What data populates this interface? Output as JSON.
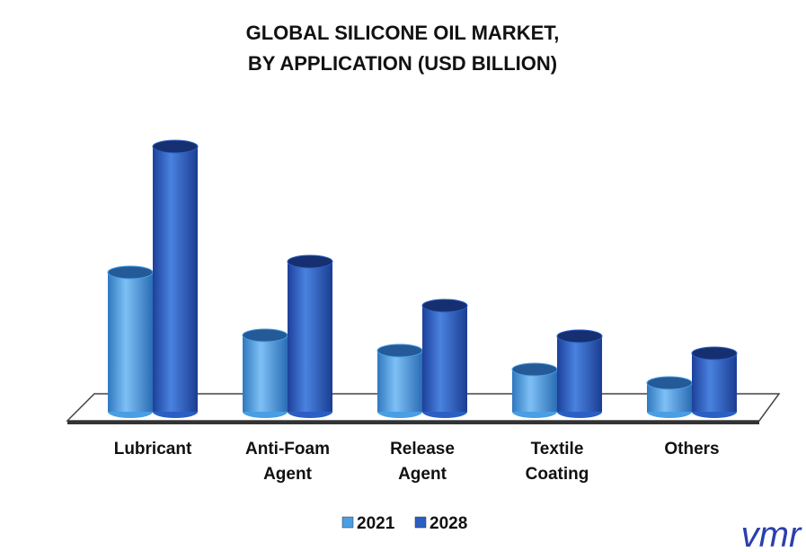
{
  "chart_data": {
    "type": "bar3d",
    "title": "GLOBAL SILICONE OIL MARKET,",
    "subtitle": "BY APPLICATION (USD BILLION)",
    "categories": [
      "Lubricant",
      "Anti-Foam Agent",
      "Release Agent",
      "Textile Coating",
      "Others"
    ],
    "series": [
      {
        "name": "2021",
        "color": "#4a9ee3",
        "values": [
          1.55,
          0.85,
          0.68,
          0.47,
          0.32
        ]
      },
      {
        "name": "2028",
        "color": "#2b5fc4",
        "values": [
          2.95,
          1.67,
          1.18,
          0.84,
          0.65
        ]
      }
    ],
    "legend": "bottom",
    "logo": "vmr"
  }
}
